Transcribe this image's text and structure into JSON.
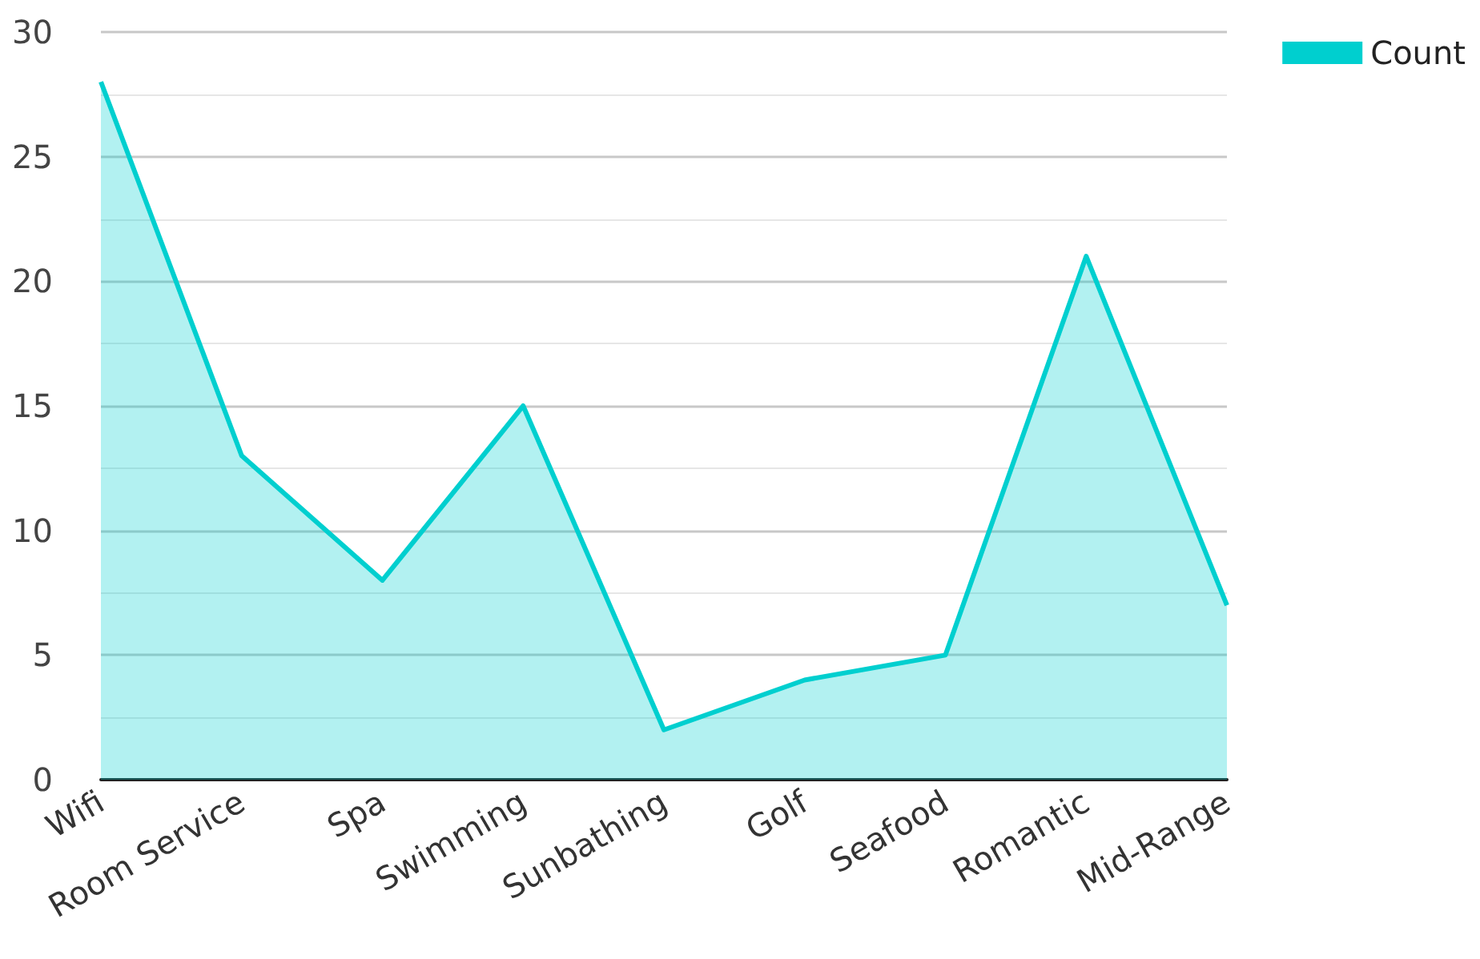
{
  "chart_data": {
    "type": "area",
    "categories": [
      "Wifi",
      "Room Service",
      "Spa",
      "Swimming",
      "Sunbathing",
      "Golf",
      "Seafood",
      "Romantic",
      "Mid-Range"
    ],
    "series": [
      {
        "name": "Count",
        "color": "#00cfcf",
        "values": [
          28,
          13,
          8,
          15,
          2,
          4,
          5,
          21,
          7
        ]
      }
    ],
    "ylim": [
      0,
      30
    ],
    "yticks": [
      0,
      5,
      10,
      15,
      20,
      25,
      30
    ],
    "grid": "y",
    "legend": "top right",
    "marker": "none"
  }
}
